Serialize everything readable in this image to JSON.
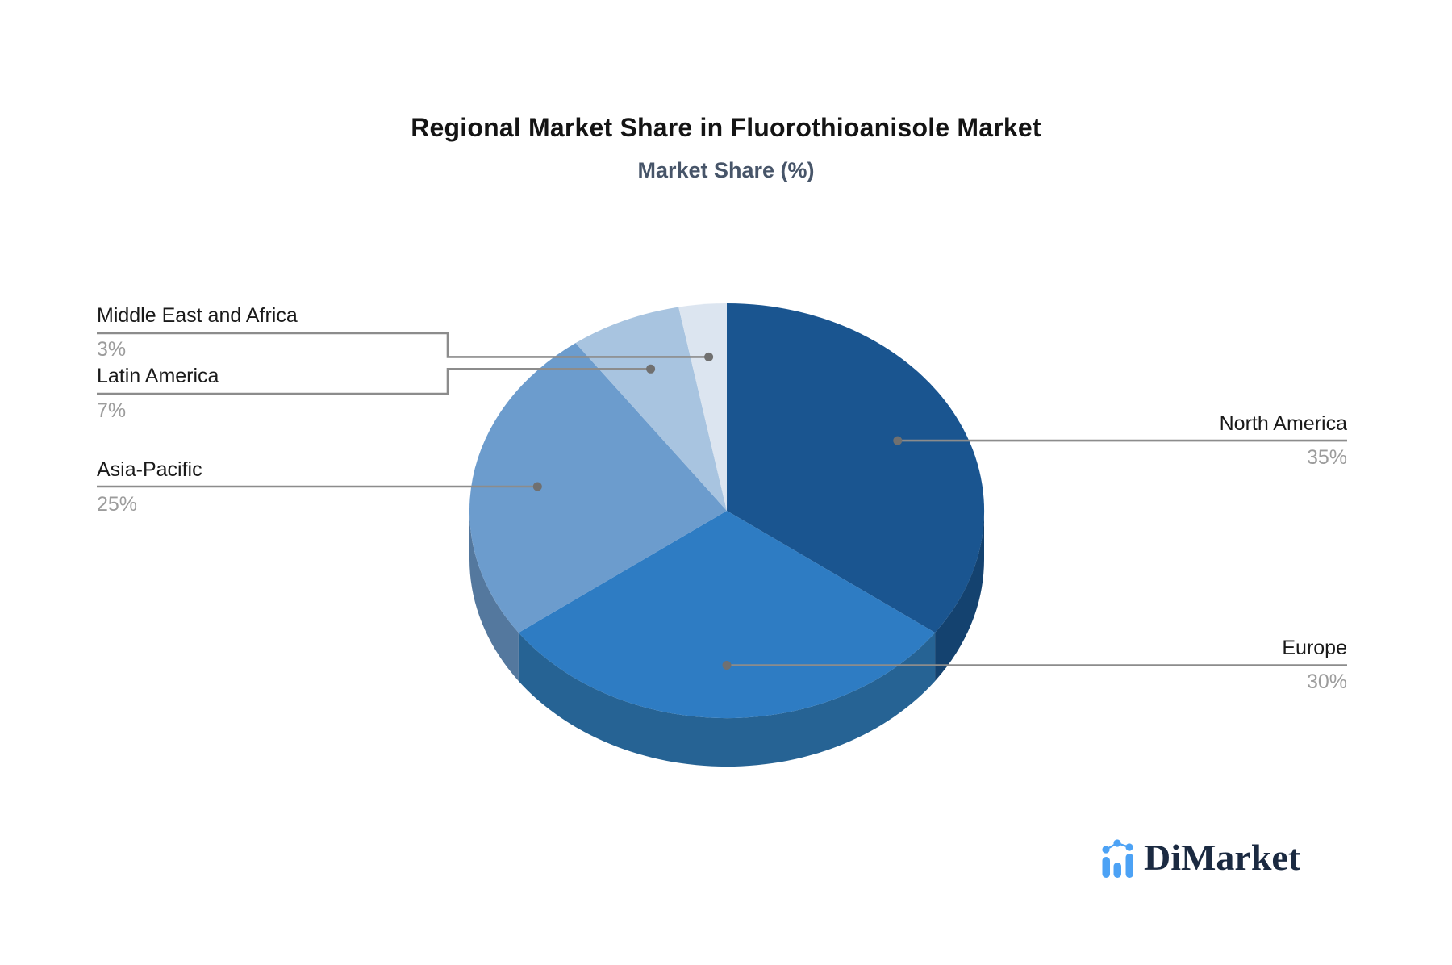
{
  "title": "Regional Market Share in Fluorothioanisole Market",
  "subtitle": "Market Share (%)",
  "logo": {
    "text": "DiMarket",
    "icon": "bar-line-chart-icon",
    "icon_color": "#4CA2F5",
    "text_color": "#1b2a41"
  },
  "chart_data": {
    "type": "pie",
    "title": "Regional Market Share in Fluorothioanisole Market",
    "subtitle": "Market Share (%)",
    "unit": "%",
    "style": "3d-pie",
    "direction": "clockwise",
    "start_angle_deg": 0,
    "legend_position": "callout-labels",
    "label_color": "#1a1a1a",
    "percent_label_color": "#9c9c9c",
    "callout_line_color": "#8c8c8c",
    "slices": [
      {
        "label": "North America",
        "value": 35,
        "pct_label": "35%",
        "color": "#1a5590",
        "side_color": "#14426f"
      },
      {
        "label": "Europe",
        "value": 30,
        "pct_label": "30%",
        "color": "#2e7cc3",
        "side_color": "#266394"
      },
      {
        "label": "Asia-Pacific",
        "value": 25,
        "pct_label": "25%",
        "color": "#6c9ccd",
        "side_color": "#54789e"
      },
      {
        "label": "Latin America",
        "value": 7,
        "pct_label": "7%",
        "color": "#a8c4e0",
        "side_color": "#8197ac"
      },
      {
        "label": "Middle East and Africa",
        "value": 3,
        "pct_label": "3%",
        "color": "#dce5f0",
        "side_color": "#a9b0b9"
      }
    ]
  }
}
